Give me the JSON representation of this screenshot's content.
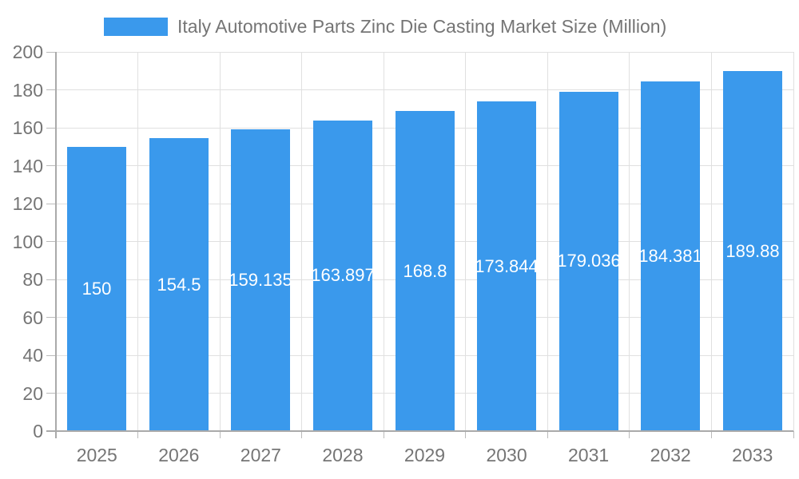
{
  "legend": {
    "label": "Italy Automotive Parts Zinc Die Casting Market Size (Million)"
  },
  "colors": {
    "bar": "#3a99ec",
    "grid": "#e0e0e0",
    "axis": "#aaaaaa",
    "tick": "#bbbbbb",
    "tick_text": "#757575",
    "value_text": "#ffffff",
    "background": "#ffffff"
  },
  "chart_data": {
    "type": "bar",
    "title": "Italy Automotive Parts Zinc Die Casting Market Size (Million)",
    "categories": [
      "2025",
      "2026",
      "2027",
      "2028",
      "2029",
      "2030",
      "2031",
      "2032",
      "2033"
    ],
    "values": [
      150,
      154.5,
      159.135,
      163.897,
      168.8,
      173.844,
      179.036,
      184.381,
      189.88
    ],
    "bar_labels": [
      "150",
      "154.5",
      "159.135",
      "163.897",
      "168.8",
      "173.844",
      "179.036",
      "184.381",
      "189.88"
    ],
    "xlabel": "",
    "ylabel": "",
    "ylim": [
      0,
      200
    ],
    "yticks": [
      0,
      20,
      40,
      60,
      80,
      100,
      120,
      140,
      160,
      180,
      200
    ],
    "grid": true,
    "legend_position": "top"
  }
}
